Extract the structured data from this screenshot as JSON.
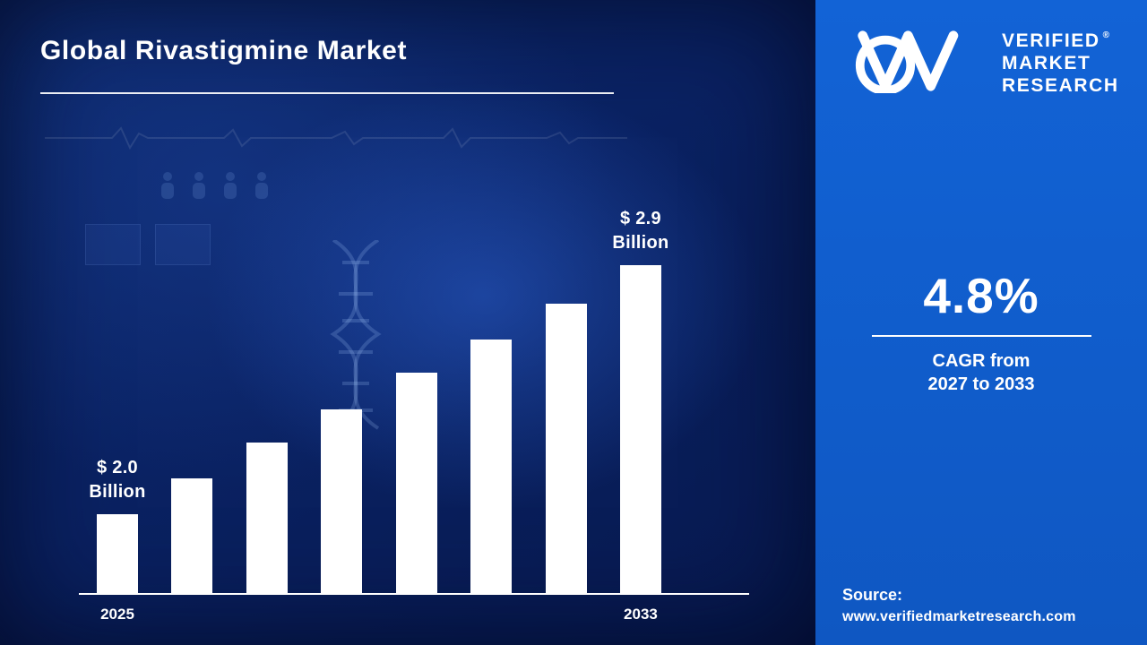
{
  "header": {
    "title": "Global Rivastigmine Market"
  },
  "chart_data": {
    "type": "bar",
    "title": "Global Rivastigmine Market",
    "unit": "USD Billion",
    "categories": [
      "2025",
      "",
      "",
      "",
      "",
      "",
      "",
      "2033"
    ],
    "x_axis_visible_labels": [
      "2025",
      "2033"
    ],
    "values": [
      2.0,
      2.13,
      2.26,
      2.38,
      2.51,
      2.63,
      2.76,
      2.9
    ],
    "bar_color": "#ffffff",
    "value_axis_shown": false,
    "grid": false,
    "annotations": [
      {
        "bar_index": 0,
        "lines": [
          "$ 2.0",
          "Billion"
        ]
      },
      {
        "bar_index": 7,
        "lines": [
          "$ 2.9",
          "Billion"
        ]
      }
    ]
  },
  "sidebar": {
    "logo": {
      "lines": [
        "VERIFIED",
        "MARKET",
        "RESEARCH"
      ],
      "registered_mark": "®"
    },
    "cagr": {
      "value": "4.8%",
      "caption_line1": "CAGR from",
      "caption_line2": "2027 to 2033"
    },
    "source": {
      "label": "Source:",
      "url": "www.verifiedmarketresearch.com"
    }
  },
  "colors": {
    "panel_blue": "#1160d0",
    "background_navy": "#0a2263",
    "bar_white": "#ffffff",
    "text_white": "#ffffff"
  }
}
